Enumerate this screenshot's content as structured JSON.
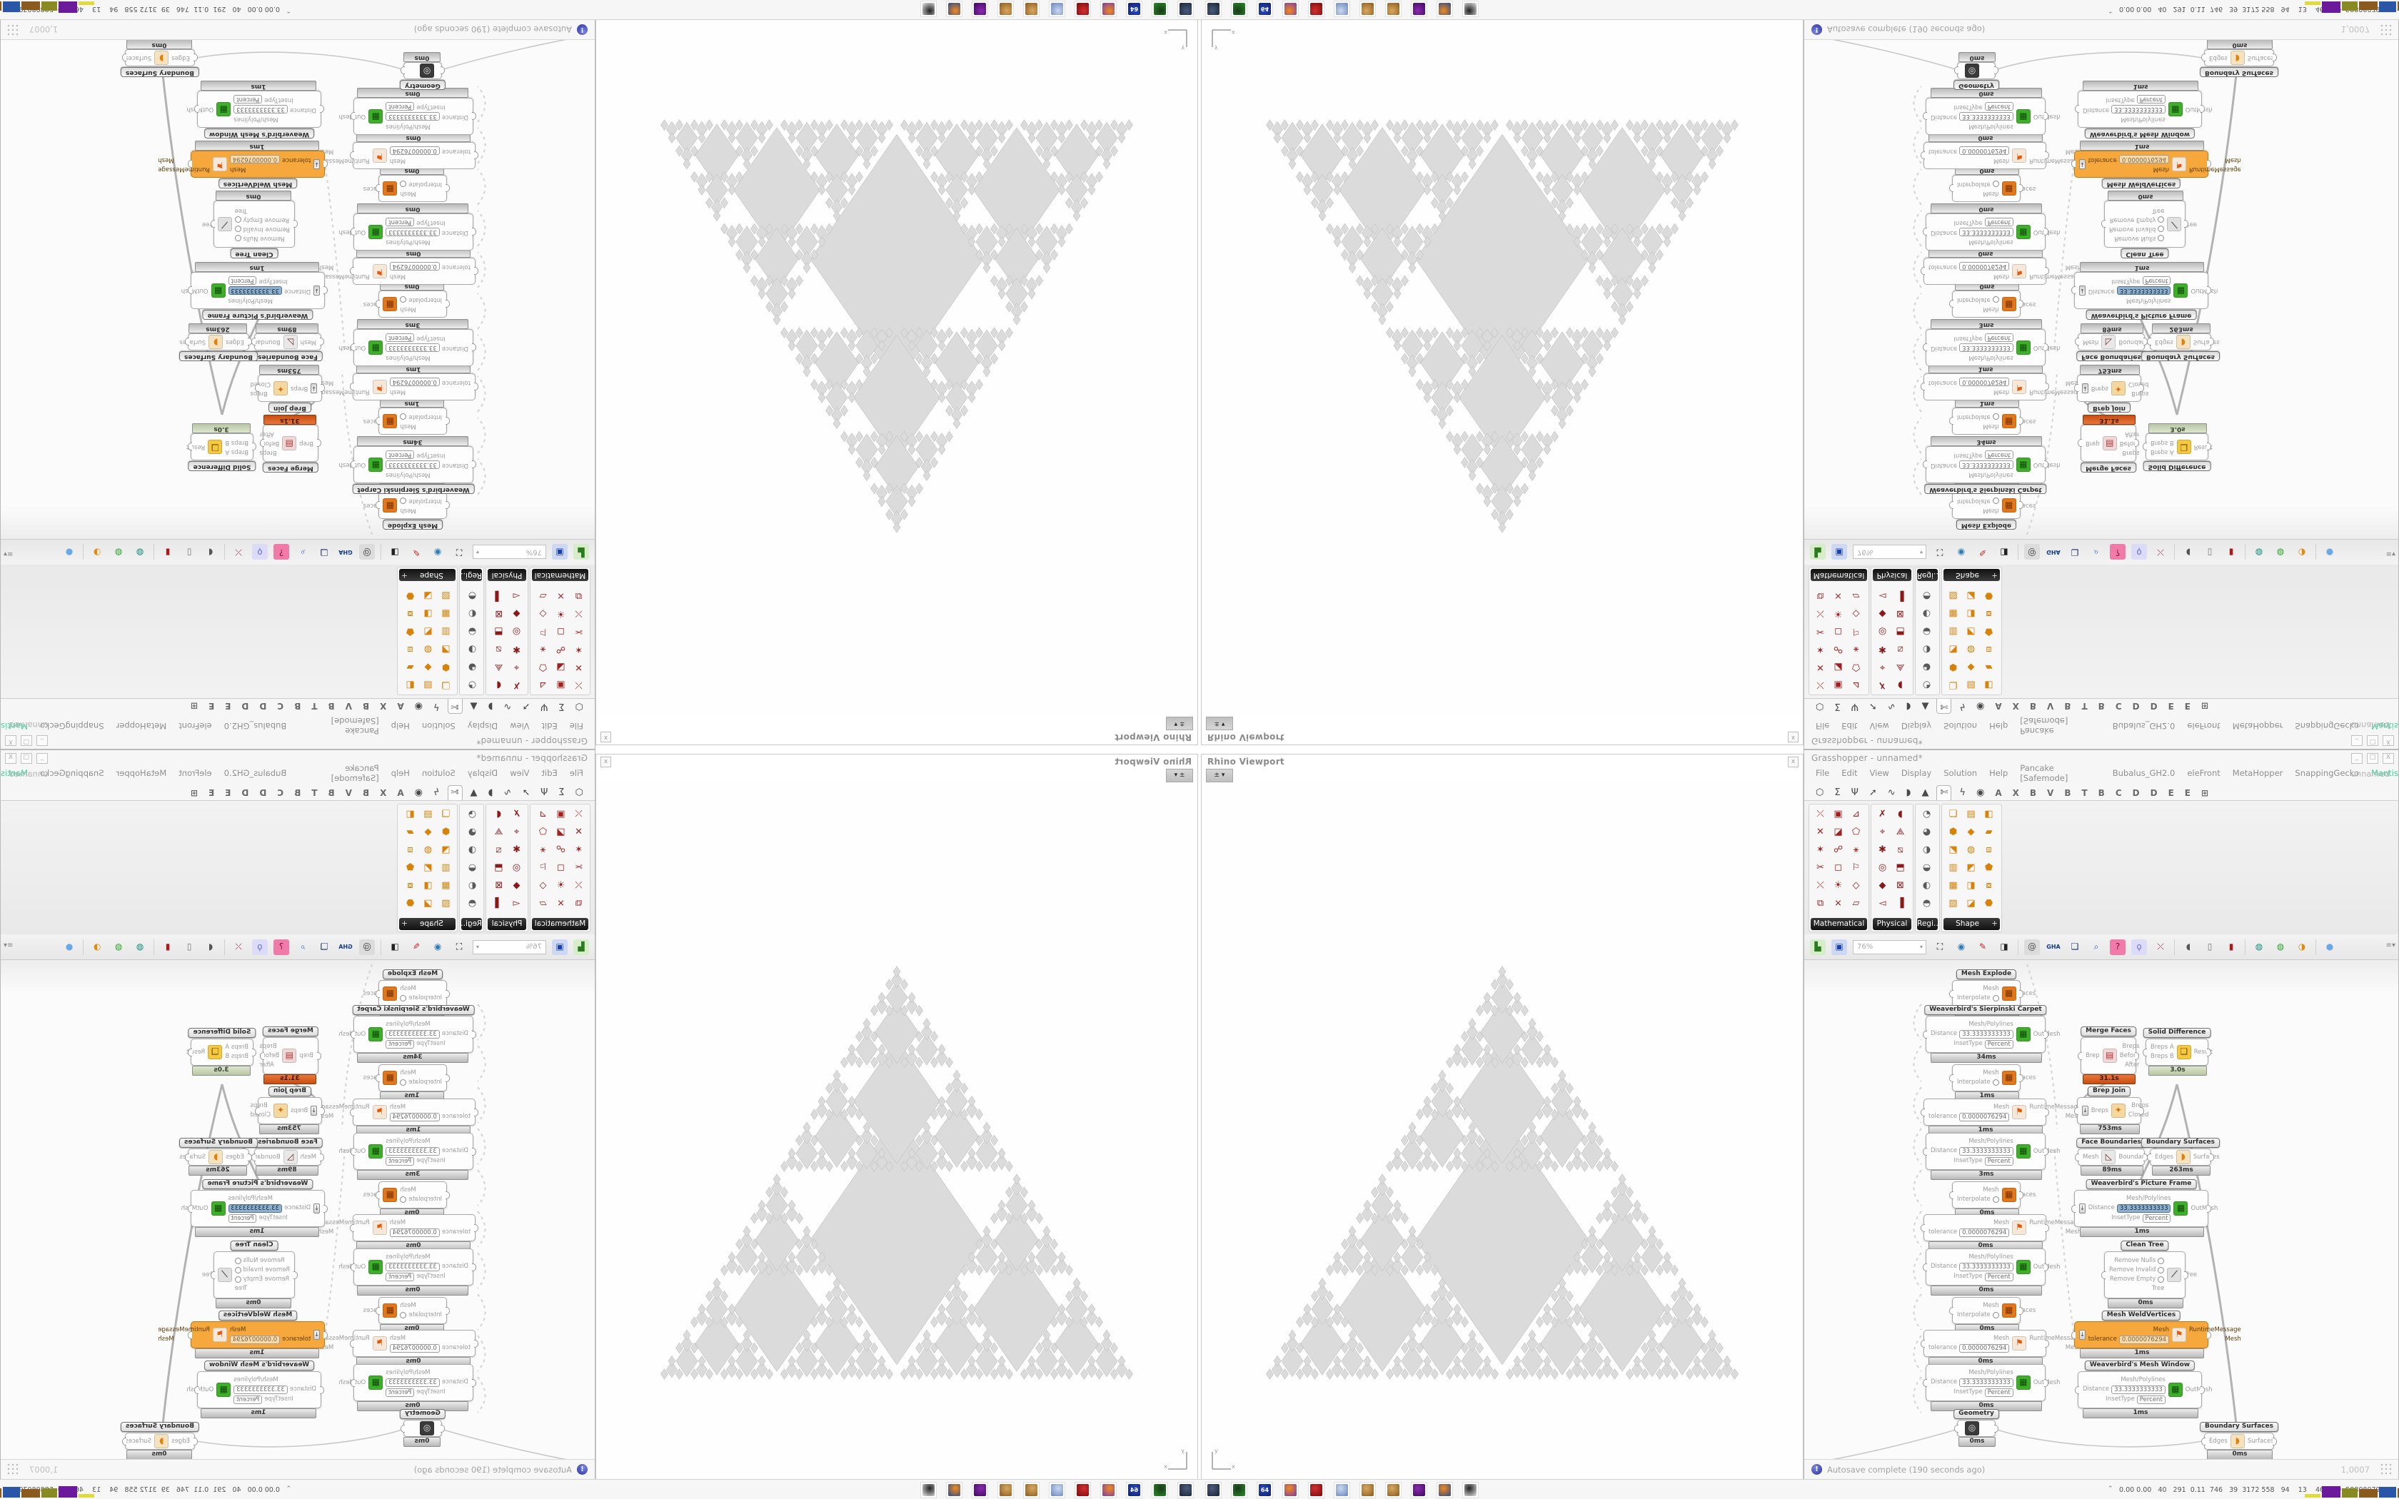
{
  "viewport_window": {
    "title": "Rhino Viewport",
    "close_glyph": "x",
    "mode_button": "± ▾",
    "axis_x": "x",
    "axis_y": "y"
  },
  "gh_window": {
    "title": "Grasshopper - unnamed*",
    "doc_label": "unnamed",
    "window_buttons": {
      "minimize": "_",
      "maximize": "□",
      "close": "X"
    },
    "menus": [
      "File",
      "Edit",
      "View",
      "Display",
      "Solution",
      "Help",
      "Pancake [Safemode]",
      "Bubalus_GH2.0",
      "eleFront",
      "MetaHopper",
      "SnappingGecko",
      "Mantis"
    ],
    "accent_menu": "Mantis",
    "accent_color": "#35d3a0",
    "icon_tabs": [
      {
        "glyph": "⬡",
        "name": "tab-params"
      },
      {
        "glyph": "Σ",
        "name": "tab-maths"
      },
      {
        "glyph": "Ψ",
        "name": "tab-sets"
      },
      {
        "glyph": "➚",
        "name": "tab-vector"
      },
      {
        "glyph": "∿",
        "name": "tab-curve"
      },
      {
        "glyph": "◗",
        "name": "tab-surface"
      },
      {
        "glyph": "▲",
        "name": "tab-mesh"
      },
      {
        "glyph": "✄",
        "name": "tab-intersect",
        "selected": true
      },
      {
        "glyph": "ϟ",
        "name": "tab-transform"
      },
      {
        "glyph": "◉",
        "name": "tab-display"
      }
    ],
    "letter_tabs": [
      "A",
      "X",
      "B",
      "V",
      "B",
      "T",
      "B",
      "C",
      "D",
      "D",
      "E",
      "E"
    ],
    "tab_overflow_glyph": "⊞",
    "ribbon_panels": [
      {
        "label": "Mathematical",
        "plus": "+",
        "cols": 3,
        "icon_color": "#a02020",
        "icons": [
          "⤫",
          "▣",
          "⊿",
          "✕",
          "◪",
          "⬠",
          "✶",
          "☍",
          "⚹",
          "✂",
          "◻",
          "⚐",
          "⤬",
          "☀",
          "◇",
          "⧉",
          "⨯",
          "▱"
        ]
      },
      {
        "label": "Physical",
        "plus": "+",
        "cols": 2,
        "icon_color": "#8a1a1a",
        "icons": [
          "✗",
          "◖",
          "⌖",
          "⟁",
          "✱",
          "⧅",
          "◎",
          "⬒",
          "◆",
          "⊠",
          "◅",
          "▐"
        ]
      },
      {
        "label": "Regi…",
        "plus": "",
        "cols": 1,
        "icon_color": "#5a5a5a",
        "icons": [
          "◔",
          "◕",
          "◑",
          "◒",
          "◐",
          "◓"
        ]
      },
      {
        "label": "Shape",
        "plus": "+",
        "cols": 3,
        "icon_color": "#d8820a",
        "icons": [
          "❏",
          "▤",
          "◧",
          "⬢",
          "◆",
          "▰",
          "⬔",
          "◍",
          "⧈",
          "▥",
          "◩",
          "⬟",
          "▦",
          "◨",
          "⧇",
          "▧",
          "◪",
          "⬣"
        ]
      }
    ],
    "canvas_toolbar": {
      "zoom_value": "76%",
      "icons": [
        {
          "name": "open-file-icon",
          "glyph": "▙",
          "fg": "#2a7a1e",
          "bg": "#d7ecc9"
        },
        {
          "name": "save-file-icon",
          "glyph": "▣",
          "fg": "#1a3fae",
          "bg": "#cdd8f5"
        },
        {
          "name": "zoom-extents-icon",
          "glyph": "⛶",
          "fg": "#222",
          "bg": "transparent"
        },
        {
          "name": "preview-eye-icon",
          "glyph": "◉",
          "fg": "#2a7ab8",
          "bg": "transparent"
        },
        {
          "name": "sketch-icon",
          "glyph": "✎",
          "fg": "#c02020",
          "bg": "transparent"
        },
        {
          "name": "projector-icon",
          "glyph": "◨",
          "fg": "#222",
          "bg": "transparent"
        },
        {
          "name": "internalise-icon",
          "glyph": "@",
          "fg": "#555",
          "bg": "#dcdcdc"
        },
        {
          "name": "gha-assembly-icon",
          "glyph": "GHA",
          "fg": "#103a8a",
          "bg": "transparent"
        },
        {
          "name": "publish-window-icon",
          "glyph": "❏",
          "fg": "#1a2a6a",
          "bg": "transparent"
        },
        {
          "name": "find-icon",
          "glyph": "⌕",
          "fg": "#2a5ab8",
          "bg": "transparent"
        },
        {
          "name": "profiler-bag-icon",
          "glyph": "?",
          "fg": "#7a1040",
          "bg": "#f07aa8"
        },
        {
          "name": "lightbulb-icon",
          "glyph": "ϙ",
          "fg": "#6a6ae0",
          "bg": "#dcdcf8"
        },
        {
          "name": "wire-display-icon",
          "glyph": "⤫",
          "fg": "#8a2a4a",
          "bg": "transparent"
        },
        {
          "name": "hidden-preview-icon",
          "glyph": "◖",
          "fg": "#555",
          "bg": "transparent"
        },
        {
          "name": "wireframe-preview-icon",
          "glyph": "▯",
          "fg": "#777",
          "bg": "transparent"
        },
        {
          "name": "shaded-preview-icon",
          "glyph": "▮",
          "fg": "#b01818",
          "bg": "transparent"
        },
        {
          "name": "teal-material-icon",
          "glyph": "◍",
          "fg": "#0f8a7a",
          "bg": "transparent"
        },
        {
          "name": "green-material-icon",
          "glyph": "◍",
          "fg": "#2aa52a",
          "bg": "transparent"
        },
        {
          "name": "half-material-icon",
          "glyph": "◑",
          "fg": "#e08a10",
          "bg": "transparent"
        },
        {
          "name": "blue-sphere-icon",
          "glyph": "●",
          "fg": "#6aa8e8",
          "bg": "transparent"
        }
      ],
      "collapse_glyph": "≡▾"
    },
    "status_bar": {
      "autosave_text": "Autosave complete (190 seconds ago)",
      "autosave_glyph": "!",
      "zoom_factor": "1,0007"
    }
  },
  "components": [
    {
      "label": "Mesh Explode",
      "icon": "mesh-grid-orange",
      "inputs": [
        {
          "n": "Mesh"
        },
        {
          "n": "Interpolate",
          "toggle": true
        }
      ],
      "outputs": [
        {
          "n": "Faces"
        }
      ],
      "badge": "12ms"
    },
    {
      "label": "Weaverbird's Sierpinski Carpet",
      "icon": "mesh-green",
      "inputs": [
        {
          "n": "Mesh/Polylines"
        },
        {
          "n": "Distance",
          "v": "33.3333333333"
        },
        {
          "n": "InsetType",
          "v": "Percent"
        }
      ],
      "outputs": [
        {
          "n": "OutMesh"
        }
      ],
      "badge": "34ms"
    },
    {
      "icon": "mesh-grid-orange",
      "inputs": [
        {
          "n": "Mesh"
        },
        {
          "n": "Interpolate",
          "toggle": true
        }
      ],
      "outputs": [
        {
          "n": "Faces"
        }
      ],
      "badge": "1ms"
    },
    {
      "icon": "weld-flag",
      "inputs": [
        {
          "n": "Mesh"
        },
        {
          "n": "tolerance",
          "v": "0.0000076294"
        }
      ],
      "outputs": [
        {
          "n": "RuntimeMessage"
        },
        {
          "n": "Mesh"
        }
      ],
      "badge": "1ms"
    },
    {
      "icon": "mesh-green",
      "inputs": [
        {
          "n": "Mesh/Polylines"
        },
        {
          "n": "Distance",
          "v": "33.3333333333"
        },
        {
          "n": "InsetType",
          "v": "Percent"
        }
      ],
      "outputs": [
        {
          "n": "OutMesh"
        }
      ],
      "badge": "3ms"
    },
    {
      "icon": "mesh-grid-orange",
      "inputs": [
        {
          "n": "Mesh"
        },
        {
          "n": "Interpolate",
          "toggle": true
        }
      ],
      "outputs": [
        {
          "n": "Faces"
        }
      ],
      "badge": "0ms"
    },
    {
      "icon": "weld-flag",
      "inputs": [
        {
          "n": "Mesh"
        },
        {
          "n": "tolerance",
          "v": "0.0000076294"
        }
      ],
      "outputs": [
        {
          "n": "RuntimeMessage"
        },
        {
          "n": "Mesh"
        }
      ],
      "badge": "0ms"
    },
    {
      "icon": "mesh-green",
      "inputs": [
        {
          "n": "Mesh/Polylines"
        },
        {
          "n": "Distance",
          "v": "33.3333333333"
        },
        {
          "n": "InsetType",
          "v": "Percent"
        }
      ],
      "outputs": [
        {
          "n": "OutMesh"
        }
      ],
      "badge": "0ms"
    },
    {
      "icon": "mesh-grid-orange",
      "inputs": [
        {
          "n": "Mesh"
        },
        {
          "n": "Interpolate",
          "toggle": true
        }
      ],
      "outputs": [
        {
          "n": "Faces"
        }
      ],
      "badge": "0ms"
    },
    {
      "icon": "weld-flag",
      "inputs": [
        {
          "n": "Mesh"
        },
        {
          "n": "tolerance",
          "v": "0.0000076294"
        }
      ],
      "outputs": [
        {
          "n": "RuntimeMessage"
        },
        {
          "n": "Mesh"
        }
      ],
      "badge": "0ms"
    },
    {
      "icon": "mesh-green",
      "inputs": [
        {
          "n": "Mesh/Polylines"
        },
        {
          "n": "Distance",
          "v": "33.3333333333"
        },
        {
          "n": "InsetType",
          "v": "Percent"
        }
      ],
      "outputs": [
        {
          "n": "OutMesh"
        }
      ],
      "badge": "0ms"
    },
    {
      "label": "Geometry",
      "icon": "spiral",
      "inputs": [],
      "outputs": [],
      "badge": "0ms"
    },
    {
      "label": "Merge Faces",
      "icon": "merge-faces",
      "inputs": [
        {
          "n": "Brep"
        }
      ],
      "outputs": [
        {
          "n": "Breps"
        },
        {
          "n": "Before"
        },
        {
          "n": "After"
        }
      ],
      "badge": "31.1s",
      "badge_style": "hot"
    },
    {
      "label": "Solid Difference",
      "icon": "solid-diff",
      "inputs": [
        {
          "n": "Breps A"
        },
        {
          "n": "Breps B"
        }
      ],
      "outputs": [
        {
          "n": "Result"
        }
      ],
      "badge": "3.0s",
      "badge_style": "cool"
    },
    {
      "label": "Brep Join",
      "icon": "brep-join",
      "inputs": [
        {
          "n": "Breps",
          "param": true
        }
      ],
      "outputs": [
        {
          "n": "Breps"
        },
        {
          "n": "Closed"
        }
      ],
      "badge": "753ms"
    },
    {
      "label": "Face Boundaries",
      "icon": "face-bounds",
      "inputs": [
        {
          "n": "Mesh"
        }
      ],
      "outputs": [
        {
          "n": "Boundaries"
        }
      ],
      "badge": "89ms"
    },
    {
      "label": "Boundary Surfaces",
      "icon": "boundary-srf",
      "inputs": [
        {
          "n": "Edges"
        }
      ],
      "outputs": [
        {
          "n": "Surfaces"
        }
      ],
      "badge": "263ms"
    },
    {
      "label": "Weaverbird's Picture Frame",
      "icon": "mesh-green",
      "inputs": [
        {
          "n": "Mesh/Polylines",
          "param": true
        },
        {
          "n": "Distance",
          "v": "33.3333333333",
          "selected": true
        },
        {
          "n": "InsetType",
          "v": "Percent"
        }
      ],
      "outputs": [
        {
          "n": "OutMesh"
        }
      ],
      "badge": "1ms"
    },
    {
      "label": "Clean Tree",
      "icon": "clean-tree",
      "inputs": [
        {
          "n": "Remove Nulls",
          "toggle": true
        },
        {
          "n": "Remove Invalid",
          "toggle": true
        },
        {
          "n": "Remove Empty",
          "toggle": true
        },
        {
          "n": "Tree"
        }
      ],
      "outputs": [
        {
          "n": "Tree"
        }
      ],
      "badge": "0ms"
    },
    {
      "label": "Mesh WeldVertices",
      "icon": "weld-flag",
      "warning": true,
      "inputs": [
        {
          "n": "Mesh",
          "param": true
        },
        {
          "n": "tolerance",
          "v": "0.0000076294"
        }
      ],
      "outputs": [
        {
          "n": "RuntimeMessage"
        },
        {
          "n": "Mesh"
        }
      ],
      "badge": "1ms"
    },
    {
      "label": "Weaverbird's Mesh Window",
      "icon": "mesh-green",
      "inputs": [
        {
          "n": "Mesh/Polylines"
        },
        {
          "n": "Distance",
          "v": "33.3333333333"
        },
        {
          "n": "InsetType",
          "v": "Percent"
        }
      ],
      "outputs": [
        {
          "n": "OutMesh"
        }
      ],
      "badge": "1ms"
    },
    {
      "label": "Boundary Surfaces",
      "icon": "boundary-srf",
      "inputs": [
        {
          "n": "Edges"
        }
      ],
      "outputs": [
        {
          "n": "Surfaces"
        }
      ],
      "badge": "0ms"
    }
  ],
  "taskbar": {
    "apps": [
      {
        "name": "monitor-app-icon",
        "c1": "#4a5a7a",
        "c2": "#1a2438",
        "glyph": ""
      },
      {
        "name": "green-terminal-app-icon",
        "c1": "#183a18",
        "c2": "#2a8a2a",
        "glyph": ""
      },
      {
        "name": "floppy-64-app-icon",
        "c1": "#2848c0",
        "c2": "#10206a",
        "glyph": "64"
      },
      {
        "name": "firefox-app-icon",
        "c1": "#f08a1e",
        "c2": "#7a3aa8",
        "glyph": ""
      },
      {
        "name": "red-media-app-icon",
        "c1": "#d03030",
        "c2": "#7a0a0a",
        "glyph": ""
      },
      {
        "name": "calculator-app-icon",
        "c1": "#c8d8f0",
        "c2": "#6a84b8",
        "glyph": ""
      },
      {
        "name": "paint-palette-app-icon",
        "c1": "#d8a860",
        "c2": "#8a5a20",
        "glyph": ""
      },
      {
        "name": "paint-palette-2-app-icon",
        "c1": "#d8a860",
        "c2": "#8a5a20",
        "glyph": ""
      },
      {
        "name": "purple-owl-app-icon",
        "c1": "#8a2ab0",
        "c2": "#3a0a5a",
        "glyph": ""
      },
      {
        "name": "blender-app-icon",
        "c1": "#f08a1e",
        "c2": "#2a4a8a",
        "glyph": ""
      },
      {
        "name": "bw-notes-app-icon",
        "c1": "#202020",
        "c2": "#e8e8e8",
        "glyph": ""
      }
    ],
    "tray_chevron": "⌃",
    "tray_stats": "0.00 0.00   40   291  0.11  746   39  3172 558   94    13    46    39  58808079",
    "histogram": [
      {
        "color": "#e0da3a",
        "h": 5,
        "w": 22
      },
      {
        "color": "#6a1a9a",
        "h": 16,
        "w": 26
      },
      {
        "color": "#8a8a22",
        "h": 13,
        "w": 22
      },
      {
        "color": "#8a5a1e",
        "h": 12,
        "w": 26
      },
      {
        "color": "#2a56a8",
        "h": 15,
        "w": 24
      },
      {
        "color": "#8a5a1e",
        "h": 13,
        "w": 24
      },
      {
        "color": "#2aa52a",
        "h": 3,
        "w": 18
      },
      {
        "color": "#b82828",
        "h": 14,
        "w": 24
      }
    ]
  },
  "fractal": {
    "shape": "sierpinski-triangle-of-diamonds",
    "depth": 5,
    "fill": "#dbdbdb",
    "stroke": "#c6c6c6"
  }
}
